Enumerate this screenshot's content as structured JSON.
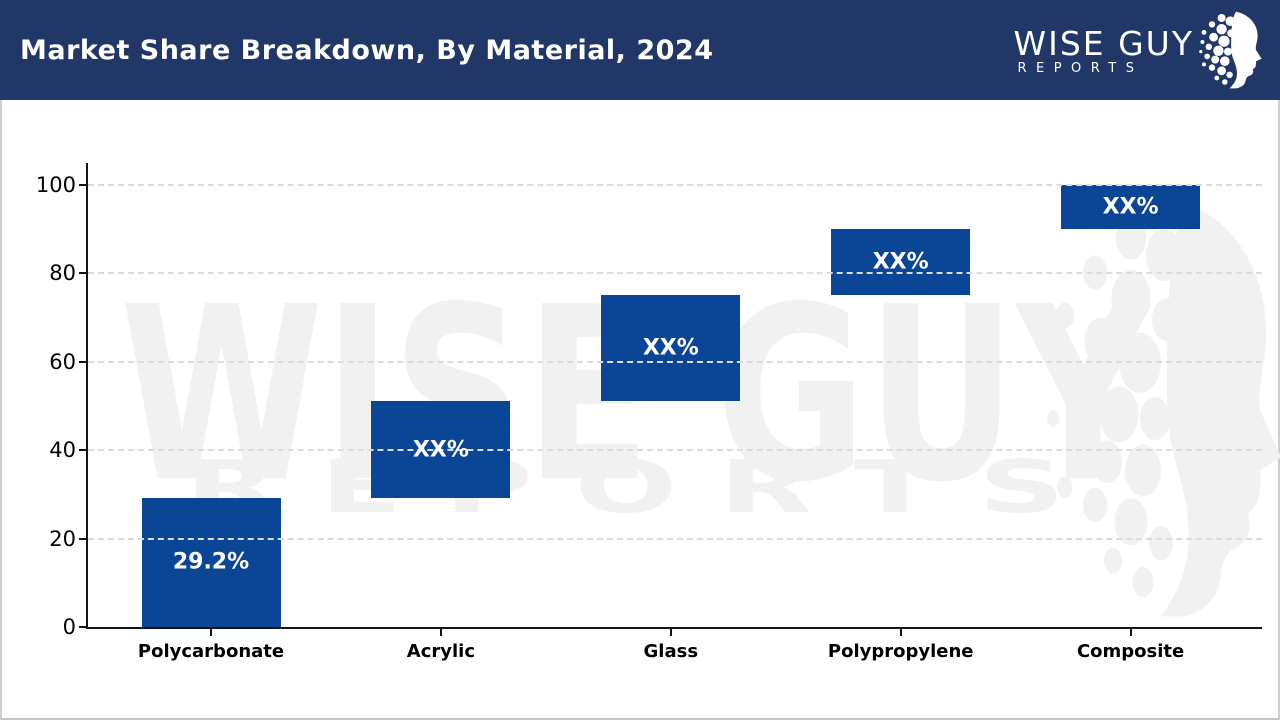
{
  "header": {
    "title": "Market Share Breakdown, By Material, 2024",
    "bg_color": "#213768",
    "text_color": "#ffffff",
    "brand": {
      "line1": "WISE GUY",
      "line2": "REPORTS"
    }
  },
  "watermark": {
    "line1": "WISE GUY",
    "line2": "R E P O R T S",
    "color": "#f1f1f2"
  },
  "chart_data": {
    "type": "bar",
    "subtype": "waterfall",
    "title": "Market Share Breakdown, By Material, 2024",
    "categories": [
      "Polycarbonate",
      "Acrylic",
      "Glass",
      "Polypropylene",
      "Composite"
    ],
    "segments": [
      {
        "category": "Polycarbonate",
        "start": 0,
        "end": 29.2,
        "label": "29.2%"
      },
      {
        "category": "Acrylic",
        "start": 29.2,
        "end": 51,
        "label": "XX%"
      },
      {
        "category": "Glass",
        "start": 51,
        "end": 75,
        "label": "XX%"
      },
      {
        "category": "Polypropylene",
        "start": 75,
        "end": 90,
        "label": "XX%"
      },
      {
        "category": "Composite",
        "start": 90,
        "end": 100,
        "label": "XX%"
      }
    ],
    "y_ticks": [
      0,
      20,
      40,
      60,
      80,
      100
    ],
    "ylim": [
      0,
      105
    ],
    "xlabel": "",
    "ylabel": "",
    "grid": true,
    "gridline_style": "dashed",
    "legend": "none",
    "bar_color": "#0b4596",
    "bar_label_color": "#ffffff"
  }
}
